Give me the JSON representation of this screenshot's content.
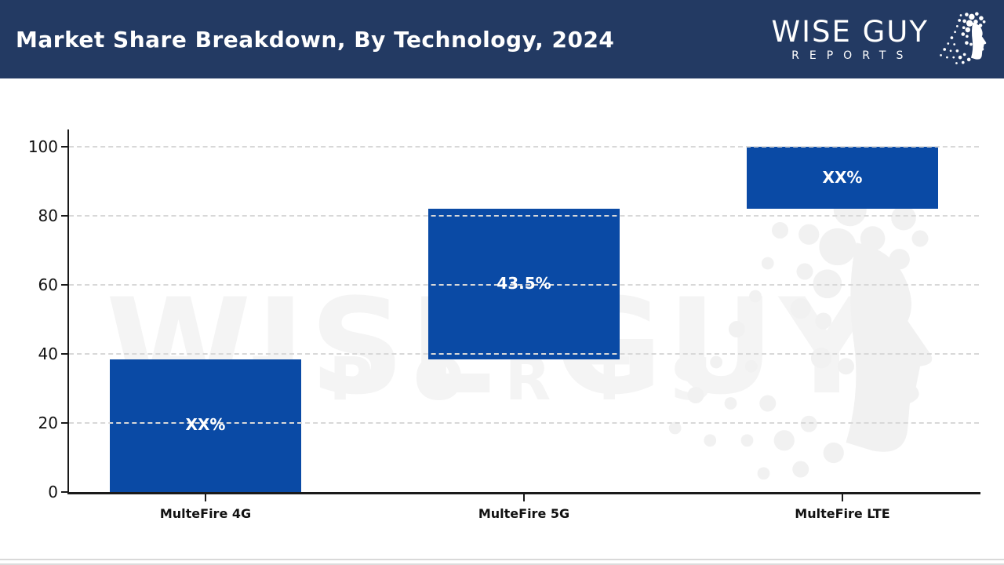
{
  "header": {
    "title": "Market Share Breakdown, By Technology, 2024",
    "logo": {
      "line1": "WISE GUY",
      "line2": "REPORTS"
    }
  },
  "watermark": {
    "line1": "WISE GUY",
    "line2": "REPORTS"
  },
  "colors": {
    "header_bg": "#233a63",
    "bar": "#0a4aa5",
    "bar_label": "#ffffff",
    "gridline": "#d8d8d8",
    "axis": "#1a1a1a",
    "tick_text": "#111111",
    "watermark": "#f3f3f3"
  },
  "chart_data": {
    "type": "bar",
    "variant": "stacked_waterfall",
    "title": "Market Share Breakdown, By Technology, 2024",
    "categories": [
      "MulteFire 4G",
      "MulteFire 5G",
      "MulteFire LTE"
    ],
    "segments": [
      {
        "category": "MulteFire 4G",
        "start": 0,
        "end": 38.5,
        "value": 38.5,
        "label": "XX%"
      },
      {
        "category": "MulteFire 5G",
        "start": 38.5,
        "end": 82,
        "value": 43.5,
        "label": "43.5%"
      },
      {
        "category": "MulteFire LTE",
        "start": 82,
        "end": 100,
        "value": 18,
        "label": "XX%"
      }
    ],
    "unit": "%",
    "yticks": [
      0,
      20,
      40,
      60,
      80,
      100
    ],
    "ylim": [
      0,
      105
    ],
    "xlabel": "",
    "ylabel": "",
    "grid": "horizontal dashed, drawn over bars",
    "legend": "none"
  }
}
